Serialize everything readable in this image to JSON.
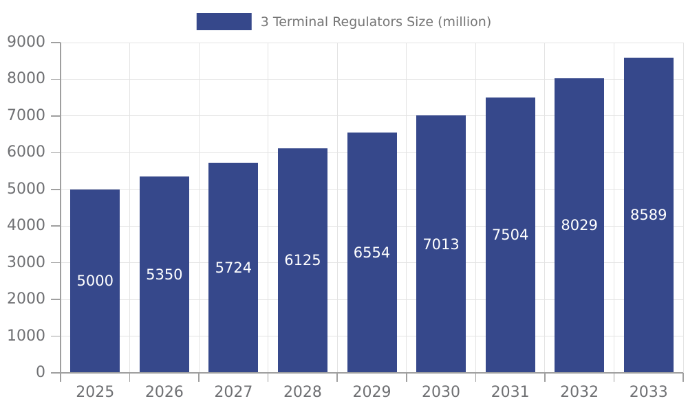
{
  "chart_data": {
    "type": "bar",
    "title": "3 Terminal Regulators Size (million)",
    "legend": [
      "3 Terminal Regulators Size (million)"
    ],
    "legend_position": "top-center",
    "categories": [
      "2025",
      "2026",
      "2027",
      "2028",
      "2029",
      "2030",
      "2031",
      "2032",
      "2033"
    ],
    "values": [
      5000,
      5350,
      5724,
      6125,
      6554,
      7013,
      7504,
      8029,
      8589
    ],
    "value_labels_shown": true,
    "xlabel": "",
    "ylabel": "",
    "ylim": [
      0,
      9000
    ],
    "y_tick_step": 1000,
    "y_ticks": [
      0,
      1000,
      2000,
      3000,
      4000,
      5000,
      6000,
      7000,
      8000,
      9000
    ],
    "grid": true,
    "colors": {
      "bar": "#36488b",
      "gridline": "#e3e3e3",
      "axis": "#9f9f9f",
      "tick_label": "#6f7073",
      "value_label": "#ffffff",
      "legend_text": "#757575",
      "background": "#ffffff"
    }
  }
}
